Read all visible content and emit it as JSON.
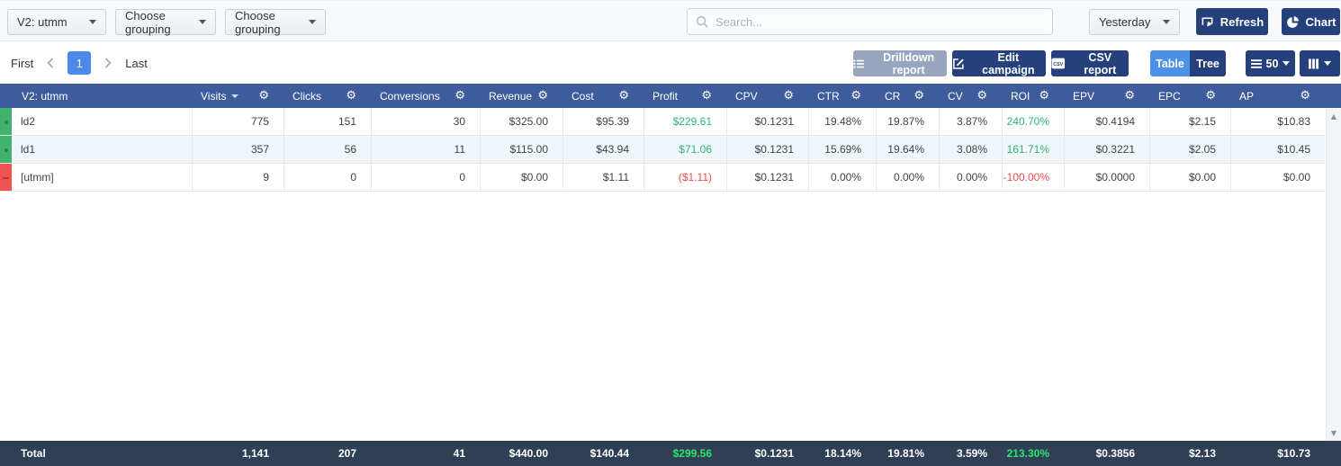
{
  "toolbar": {
    "campaign_select": "V2: utmm",
    "grouping1": "Choose grouping",
    "grouping2": "Choose grouping",
    "search_placeholder": "Search...",
    "date_range": "Yesterday",
    "refresh_label": "Refresh",
    "chart_label": "Chart"
  },
  "actions": {
    "first_label": "First",
    "page_number": "1",
    "last_label": "Last",
    "drilldown_label": "Drilldown report",
    "edit_campaign_label": "Edit campaign",
    "csv_label": "CSV report",
    "table_label": "Table",
    "tree_label": "Tree",
    "page_size": "50"
  },
  "icons": [
    "search-icon",
    "refresh-icon",
    "pie-chart-icon",
    "drilldown-list-icon",
    "edit-icon",
    "csv-file-icon",
    "rows-menu-icon",
    "columns-icon",
    "gear-icon",
    "chevron-left-icon",
    "chevron-right-icon",
    "caret-down-icon",
    "scroll-up-icon",
    "scroll-down-icon"
  ],
  "colors": {
    "header_bg": "#3e5c9c",
    "total_bg": "#2f3f55",
    "navy_button": "#26407c",
    "active_blue": "#4d90e8",
    "positive": "#2eb573",
    "negative": "#ef4d4d",
    "total_positive": "#2ee56b",
    "indicator_green": "#41b36d",
    "indicator_red": "#ee5352"
  },
  "table": {
    "columns": [
      {
        "key": "name",
        "label": "V2: utmm",
        "sortable": false,
        "gear": false
      },
      {
        "key": "visits",
        "label": "Visits",
        "sortable": true,
        "gear": true
      },
      {
        "key": "clicks",
        "label": "Clicks",
        "sortable": false,
        "gear": true
      },
      {
        "key": "conversions",
        "label": "Conversions",
        "sortable": false,
        "gear": true
      },
      {
        "key": "revenue",
        "label": "Revenue",
        "sortable": false,
        "gear": true
      },
      {
        "key": "cost",
        "label": "Cost",
        "sortable": false,
        "gear": true
      },
      {
        "key": "profit",
        "label": "Profit",
        "sortable": false,
        "gear": true
      },
      {
        "key": "cpv",
        "label": "CPV",
        "sortable": false,
        "gear": true
      },
      {
        "key": "ctr",
        "label": "CTR",
        "sortable": false,
        "gear": true
      },
      {
        "key": "cr",
        "label": "CR",
        "sortable": false,
        "gear": true
      },
      {
        "key": "cv",
        "label": "CV",
        "sortable": false,
        "gear": true
      },
      {
        "key": "roi",
        "label": "ROI",
        "sortable": false,
        "gear": true
      },
      {
        "key": "epv",
        "label": "EPV",
        "sortable": false,
        "gear": true
      },
      {
        "key": "epc",
        "label": "EPC",
        "sortable": false,
        "gear": true
      },
      {
        "key": "ap",
        "label": "AP",
        "sortable": false,
        "gear": true
      }
    ],
    "rows": [
      {
        "status": "positive",
        "name": "ld2",
        "visits": "775",
        "clicks": "151",
        "conversions": "30",
        "revenue": "$325.00",
        "cost": "$95.39",
        "profit": "$229.61",
        "cpv": "$0.1231",
        "ctr": "19.48%",
        "cr": "19.87%",
        "cv": "3.87%",
        "roi": "240.70%",
        "epv": "$0.4194",
        "epc": "$2.15",
        "ap": "$10.83"
      },
      {
        "status": "positive",
        "name": "ld1",
        "visits": "357",
        "clicks": "56",
        "conversions": "11",
        "revenue": "$115.00",
        "cost": "$43.94",
        "profit": "$71.06",
        "cpv": "$0.1231",
        "ctr": "15.69%",
        "cr": "19.64%",
        "cv": "3.08%",
        "roi": "161.71%",
        "epv": "$0.3221",
        "epc": "$2.05",
        "ap": "$10.45"
      },
      {
        "status": "negative",
        "name": "[utmm]",
        "visits": "9",
        "clicks": "0",
        "conversions": "0",
        "revenue": "$0.00",
        "cost": "$1.11",
        "profit": "($1.11)",
        "cpv": "$0.1231",
        "ctr": "0.00%",
        "cr": "0.00%",
        "cv": "0.00%",
        "roi": "-100.00%",
        "epv": "$0.0000",
        "epc": "$0.00",
        "ap": "$0.00"
      }
    ],
    "total": {
      "name": "Total",
      "visits": "1,141",
      "clicks": "207",
      "conversions": "41",
      "revenue": "$440.00",
      "cost": "$140.44",
      "profit": "$299.56",
      "cpv": "$0.1231",
      "ctr": "18.14%",
      "cr": "19.81%",
      "cv": "3.59%",
      "roi": "213.30%",
      "epv": "$0.3856",
      "epc": "$2.13",
      "ap": "$10.73"
    }
  }
}
